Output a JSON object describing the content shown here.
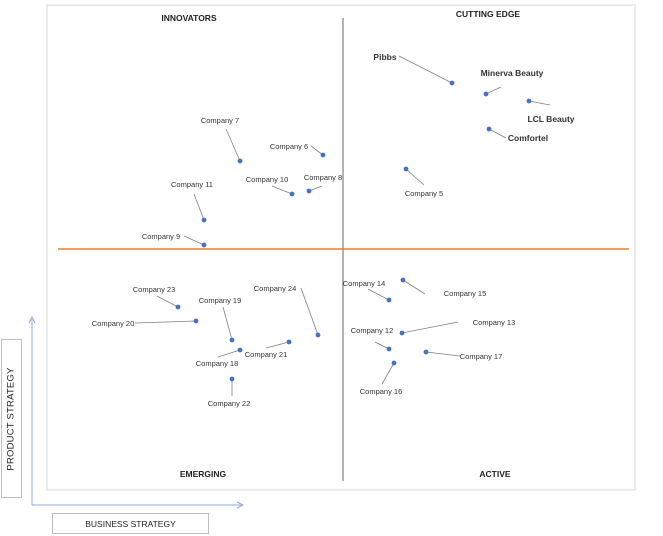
{
  "quadrants": {
    "top_left": "INNOVATORS",
    "top_right": "CUTTING EDGE",
    "bottom_left": "EMERGING",
    "bottom_right": "ACTIVE"
  },
  "axes": {
    "y_label": "PRODUCT STRATEGY",
    "x_label": "BUSINESS STRATEGY"
  },
  "colors": {
    "dot": "#4472c4",
    "horizontal_divider": "#ed7d31",
    "vertical_divider": "#7f7f7f",
    "axis_arrow": "#8faadc",
    "leader_line": "#7f7f7f"
  },
  "companies": [
    {
      "name": "Pibbs",
      "bold": true
    },
    {
      "name": "Minerva Beauty",
      "bold": true
    },
    {
      "name": "LCL Beauty",
      "bold": true
    },
    {
      "name": "Comfortel",
      "bold": true
    },
    {
      "name": "Company 5",
      "bold": false
    },
    {
      "name": "Company 6",
      "bold": false
    },
    {
      "name": "Company 7",
      "bold": false
    },
    {
      "name": "Company 8",
      "bold": false
    },
    {
      "name": "Company 9",
      "bold": false
    },
    {
      "name": "Company 10",
      "bold": false
    },
    {
      "name": "Company 11",
      "bold": false
    },
    {
      "name": "Company 12",
      "bold": false
    },
    {
      "name": "Company 13",
      "bold": false
    },
    {
      "name": "Company 14",
      "bold": false
    },
    {
      "name": "Company 15",
      "bold": false
    },
    {
      "name": "Company 16",
      "bold": false
    },
    {
      "name": "Company 17",
      "bold": false
    },
    {
      "name": "Company 18",
      "bold": false
    },
    {
      "name": "Company 19",
      "bold": false
    },
    {
      "name": "Company 20",
      "bold": false
    },
    {
      "name": "Company 21",
      "bold": false
    },
    {
      "name": "Company 22",
      "bold": false
    },
    {
      "name": "Company 23",
      "bold": false
    },
    {
      "name": "Company 24",
      "bold": false
    }
  ]
}
